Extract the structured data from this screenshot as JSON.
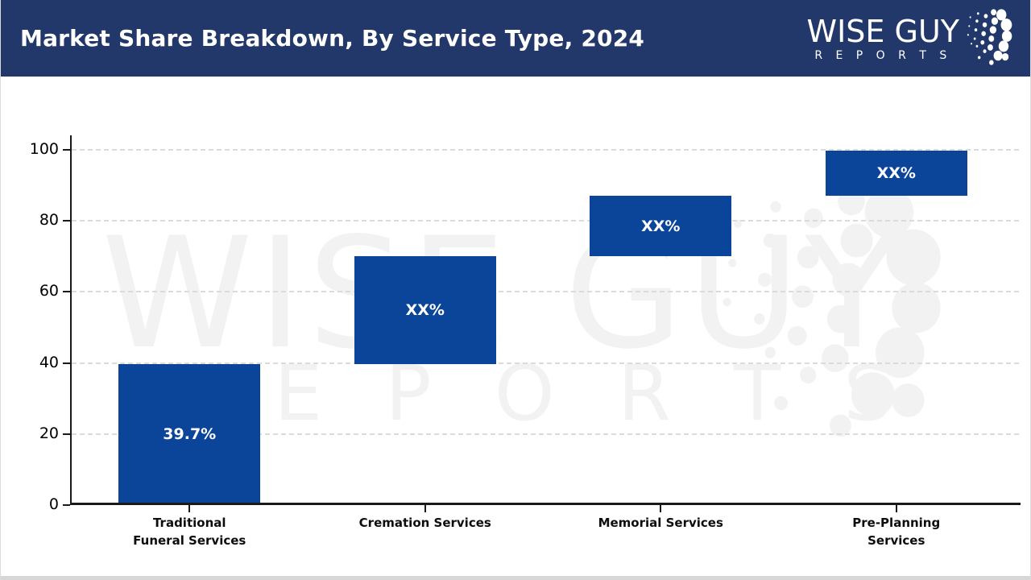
{
  "header": {
    "title": "Market Share Breakdown, By Service Type, 2024",
    "bg_color": "#22386b",
    "logo": {
      "line1": "WISE GUY",
      "line2": "R E P O R T S"
    }
  },
  "watermark": {
    "line1": "WISE GUY",
    "line2": "R E P O R T S"
  },
  "chart_data": {
    "type": "bar",
    "subtype": "waterfall",
    "title": "Market Share Breakdown, By Service Type, 2024",
    "categories": [
      "Traditional\nFuneral Services",
      "Cremation Services",
      "Memorial Services",
      "Pre-Planning\nServices"
    ],
    "segments": [
      {
        "category": "Traditional Funeral Services",
        "start": 0,
        "end": 39.7,
        "label": "39.7%"
      },
      {
        "category": "Cremation Services",
        "start": 39.7,
        "end": 70,
        "label": "XX%"
      },
      {
        "category": "Memorial Services",
        "start": 70,
        "end": 87,
        "label": "XX%"
      },
      {
        "category": "Pre-Planning Services",
        "start": 87,
        "end": 99.7,
        "label": "XX%"
      }
    ],
    "bar_color": "#0a459a",
    "label_color": "#ffffff",
    "ylim": [
      0,
      100
    ],
    "yticks": [
      0,
      20,
      40,
      60,
      80,
      100
    ],
    "grid": "horizontal-dashed",
    "legend": "none",
    "xlabel": "",
    "ylabel": ""
  }
}
